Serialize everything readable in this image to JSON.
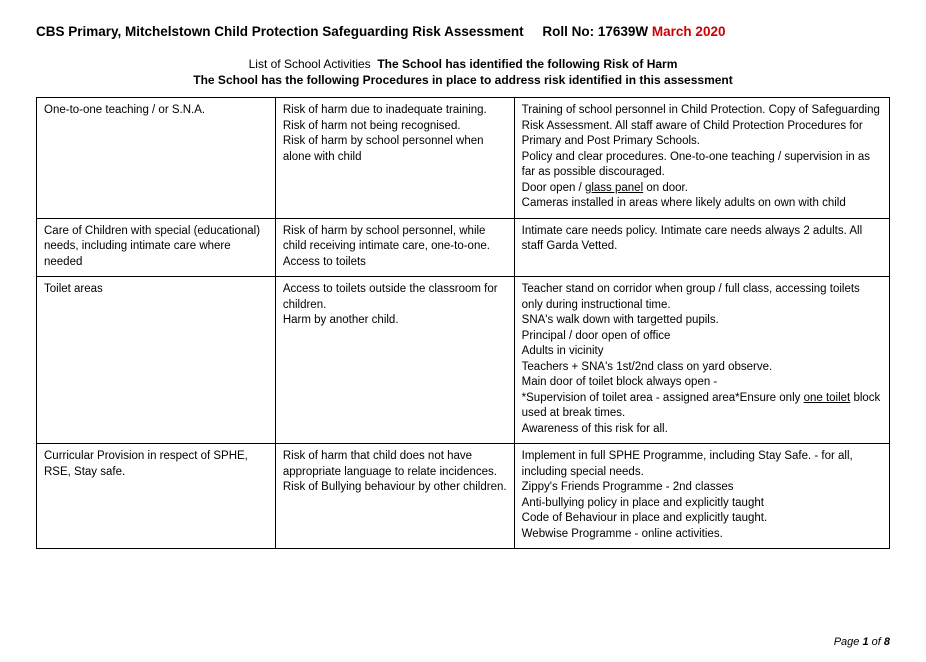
{
  "header": {
    "title_main": "CBS Primary, Mitchelstown Child Protection Safeguarding Risk Assessment",
    "roll_label": "Roll No: 17639W",
    "date": "March 2020"
  },
  "subhead": {
    "light": "List of School Activities",
    "bold": "The School has   identified the following Risk of Harm",
    "line2": "The School has the following Procedures in place to address risk identified in this assessment"
  },
  "rows": [
    {
      "activity": "One-to-one teaching  / or S.N.A.",
      "risk": "Risk of harm due to inadequate training.\nRisk of harm not being recognised.\nRisk of harm by school personnel when alone with child",
      "proc_pre": "Training of school personnel in Child Protection. Copy of Safeguarding Risk Assessment. All staff aware of Child Protection Procedures for Primary and Post Primary Schools.\nPolicy and clear procedures. One-to-one teaching / supervision in as far as possible discouraged.\nDoor open / ",
      "proc_u": "glass panel",
      "proc_post": " on door.\nCameras installed in areas where likely adults on own with child"
    },
    {
      "activity": "Care of Children with special (educational) needs, including intimate care where needed",
      "risk": "Risk of harm by school personnel, while child receiving intimate care, one-to-one. Access to toilets",
      "proc_pre": "Intimate care needs policy. Intimate care needs always 2 adults. All staff Garda Vetted.",
      "proc_u": "",
      "proc_post": ""
    },
    {
      "activity": "Toilet areas",
      "risk": "Access to toilets outside the classroom for children.\nHarm by another child.",
      "proc_pre": "Teacher stand on corridor when group / full class, accessing toilets only during instructional time.\nSNA's walk down with targetted pupils.\nPrincipal / door open of office\nAdults in vicinity\nTeachers + SNA's 1st/2nd class on yard observe.\nMain door of toilet block always open -\n*Supervision of toilet area - assigned area*Ensure only ",
      "proc_u": "one toilet",
      "proc_post": " block used at break times.\nAwareness of this risk for all."
    },
    {
      "activity": "Curricular Provision in respect of SPHE, RSE, Stay safe.",
      "risk": "Risk of harm that child does not have appropriate language to relate incidences.\nRisk of Bullying behaviour by other children.",
      "proc_pre": "Implement in full SPHE Programme, including Stay Safe. - for all, including special needs.\nZippy's Friends Programme - 2nd classes\nAnti-bullying policy in place and explicitly taught\nCode of Behaviour in place and explicitly taught.\nWebwise Programme - online activities.",
      "proc_u": "",
      "proc_post": ""
    }
  ],
  "footer": {
    "page_label": "Page ",
    "page_num": "1",
    "of_label": " of ",
    "page_total": "8"
  }
}
